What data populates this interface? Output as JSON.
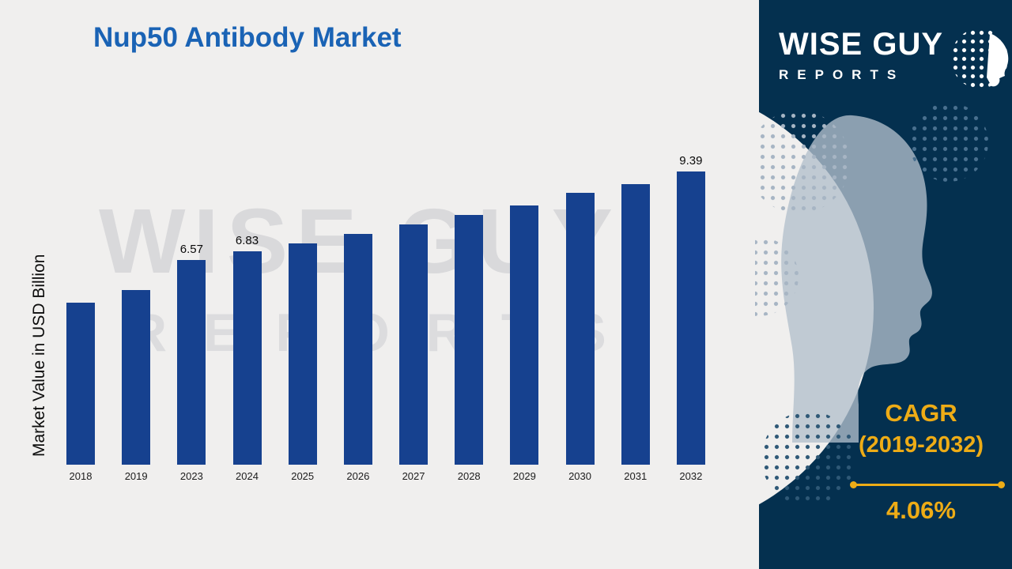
{
  "title": "Nup50 Antibody Market",
  "ylabel": "Market Value in USD Billion",
  "watermark": {
    "line1": "WISE GUY",
    "line2": "REPORTS"
  },
  "brand": {
    "name": "WISE GUY",
    "sub": "REPORTS"
  },
  "cagr": {
    "label": "CAGR",
    "range": "(2019-2032)",
    "value": "4.06%"
  },
  "colors": {
    "bg": "#f0efee",
    "title": "#1a63b5",
    "bar": "#16418f",
    "panel": "#04304f",
    "accent": "#eeac16"
  },
  "chart_data": {
    "type": "bar",
    "title": "Nup50 Antibody Market",
    "xlabel": "",
    "ylabel": "Market Value in USD Billion",
    "categories": [
      "2018",
      "2019",
      "2023",
      "2024",
      "2025",
      "2026",
      "2027",
      "2028",
      "2029",
      "2030",
      "2031",
      "2032"
    ],
    "values": [
      5.2,
      5.6,
      6.57,
      6.83,
      7.1,
      7.4,
      7.7,
      8.0,
      8.3,
      8.7,
      9.0,
      9.39
    ],
    "data_labels": {
      "2023": "6.57",
      "2024": "6.83",
      "2032": "9.39"
    },
    "unit": "USD Billion",
    "ylim": [
      0,
      10
    ],
    "grid": false,
    "legend": false,
    "bar_color": "#16418f"
  }
}
